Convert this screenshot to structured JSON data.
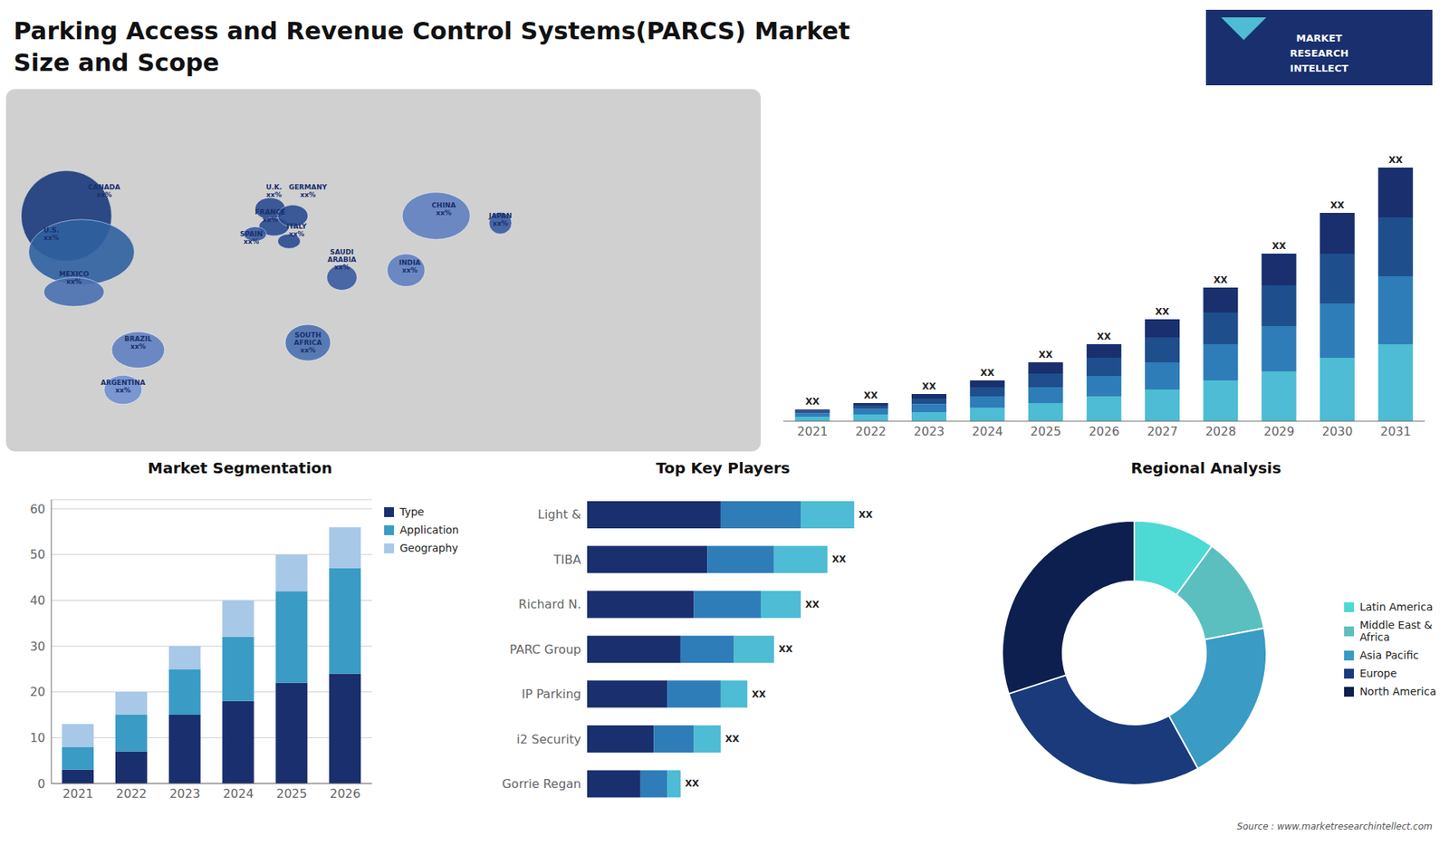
{
  "title": "Parking Access and Revenue Control Systems(PARCS) Market\nSize and Scope",
  "annotations": [
    "MARKET",
    "RESEARCH",
    "INTELLECT",
    "Source : www.marketresearchintellect.com"
  ],
  "chart_data": [
    {
      "type": "map",
      "annotations": [
        "CANADA\nxx%",
        "U.S.\nxx%",
        "MEXICO\nxx%",
        "BRAZIL\nxx%",
        "ARGENTINA\nxx%",
        "U.K.\nxx%",
        "FRANCE\nxx%",
        "SPAIN\nxx%",
        "GERMANY\nxx%",
        "ITALY\nxx%",
        "SAUDI\nARABIA\nxx%",
        "SOUTH\nAFRICA\nxx%",
        "CHINA\nxx%",
        "INDIA\nxx%",
        "JAPAN\nxx%"
      ]
    },
    {
      "type": "bar",
      "stacked": true,
      "categories": [
        "2021",
        "2022",
        "2023",
        "2024",
        "2025",
        "2026",
        "2027",
        "2028",
        "2029",
        "2030",
        "2031"
      ],
      "series": [
        {
          "color": "#4dbcd4",
          "values": [
            1,
            1.5,
            2,
            3,
            4,
            5.5,
            7,
            9,
            11,
            14,
            17
          ]
        },
        {
          "color": "#2e7db8",
          "values": [
            0.8,
            1.2,
            1.8,
            2.5,
            3.5,
            4.5,
            6,
            8,
            10,
            12,
            15
          ]
        },
        {
          "color": "#1f4e8c",
          "values": [
            0.5,
            0.8,
            1.2,
            2,
            3,
            4,
            5.5,
            7,
            9,
            11,
            13
          ]
        },
        {
          "color": "#1a2f6e",
          "values": [
            0.3,
            0.5,
            1.0,
            1.5,
            2.5,
            3,
            4,
            5.5,
            7,
            9,
            11
          ]
        }
      ],
      "value_labels": [
        "XX",
        "XX",
        "XX",
        "XX",
        "XX",
        "XX",
        "XX",
        "XX",
        "XX",
        "XX",
        "XX"
      ],
      "ylim": [
        0,
        70
      ],
      "tick_labels": "x",
      "grid": false
    },
    {
      "type": "bar",
      "title": "Market Segmentation",
      "stacked": true,
      "categories": [
        "2021",
        "2022",
        "2023",
        "2024",
        "2025",
        "2026"
      ],
      "series": [
        {
          "name": "Type",
          "color": "#1a2f6e",
          "values": [
            3,
            7,
            15,
            18,
            22,
            24
          ]
        },
        {
          "name": "Application",
          "color": "#3a9bc4",
          "values": [
            5,
            8,
            10,
            14,
            20,
            23
          ]
        },
        {
          "name": "Geography",
          "color": "#a8c8e8",
          "values": [
            5,
            5,
            5,
            8,
            8,
            9
          ]
        }
      ],
      "ylim": [
        0,
        62
      ],
      "yticks": [
        0,
        10,
        20,
        30,
        40,
        50,
        60
      ],
      "grid": true,
      "legend": "right"
    },
    {
      "type": "bar",
      "title": "Top Key Players",
      "orientation": "horizontal",
      "stacked": true,
      "categories": [
        "Light &",
        "TIBA",
        "Richard N.",
        "PARC Group",
        "IP Parking",
        "i2 Security",
        "Gorrie Regan"
      ],
      "series": [
        {
          "color": "#1a2f6e",
          "values": [
            5,
            4.5,
            4,
            3.5,
            3,
            2.5,
            2
          ]
        },
        {
          "color": "#2e7db8",
          "values": [
            3,
            2.5,
            2.5,
            2,
            2,
            1.5,
            1
          ]
        },
        {
          "color": "#4dbcd4",
          "values": [
            2,
            2,
            1.5,
            1.5,
            1,
            1,
            0.5
          ]
        }
      ],
      "value_labels": [
        "XX",
        "XX",
        "XX",
        "XX",
        "XX",
        "XX",
        "XX"
      ],
      "xlim": [
        0,
        13
      ],
      "tick_labels": "y",
      "grid": false
    },
    {
      "type": "pie",
      "title": "Regional Analysis",
      "categories": [
        "Latin America",
        "Middle East &\nAfrica",
        "Asia Pacific",
        "Europe",
        "North America"
      ],
      "values": [
        10,
        12,
        20,
        28,
        30
      ],
      "colors": [
        "#4dd9d4",
        "#5bbfbf",
        "#3a9bc4",
        "#1a3a7c",
        "#0d1f4e"
      ],
      "legend": "right"
    }
  ]
}
